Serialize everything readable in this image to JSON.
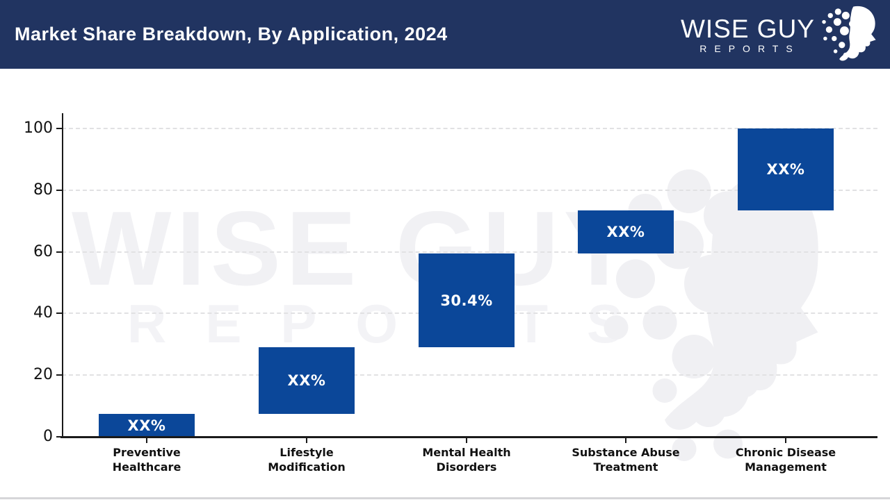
{
  "header": {
    "title": "Market Share Breakdown, By Application, 2024",
    "logo": {
      "line1": "WISE GUY",
      "line2": "REPORTS"
    }
  },
  "watermark": {
    "line1": "WISE GUY",
    "line2": "REPORTS"
  },
  "colors": {
    "header_bg": "#213461",
    "bar_blue": "#0b4799",
    "grid": "#e1e1e3",
    "axis": "#1a1a1a",
    "watermark": "#f1f1f4"
  },
  "chart_data": {
    "type": "bar",
    "subtype": "waterfall",
    "title": "Market Share Breakdown, By Application, 2024",
    "categories": [
      "Preventive Healthcare",
      "Lifestyle Modification",
      "Mental Health Disorders",
      "Substance Abuse Treatment",
      "Chronic Disease Management"
    ],
    "tick_label_lines": [
      [
        "Preventive",
        "Healthcare"
      ],
      [
        "Lifestyle",
        "Modification"
      ],
      [
        "Mental Health",
        "Disorders"
      ],
      [
        "Substance Abuse",
        "Treatment"
      ],
      [
        "Chronic Disease",
        "Management"
      ]
    ],
    "bars": [
      {
        "label": "XX%",
        "start": 0,
        "end": 7.4
      },
      {
        "label": "XX%",
        "start": 7.4,
        "end": 29
      },
      {
        "label": "30.4%",
        "start": 29,
        "end": 59.4
      },
      {
        "label": "XX%",
        "start": 59.4,
        "end": 73.4
      },
      {
        "label": "XX%",
        "start": 73.4,
        "end": 100
      }
    ],
    "values_pct": [
      7.4,
      21.6,
      30.4,
      14.0,
      26.6
    ],
    "xlabel": "",
    "ylabel": "",
    "ylim": [
      0,
      105
    ],
    "yticks": [
      0,
      20,
      40,
      60,
      80,
      100
    ],
    "grid": "horizontal-dashed",
    "legend": "none",
    "bar_color": "#0b4799",
    "bar_label_color": "#ffffff"
  }
}
